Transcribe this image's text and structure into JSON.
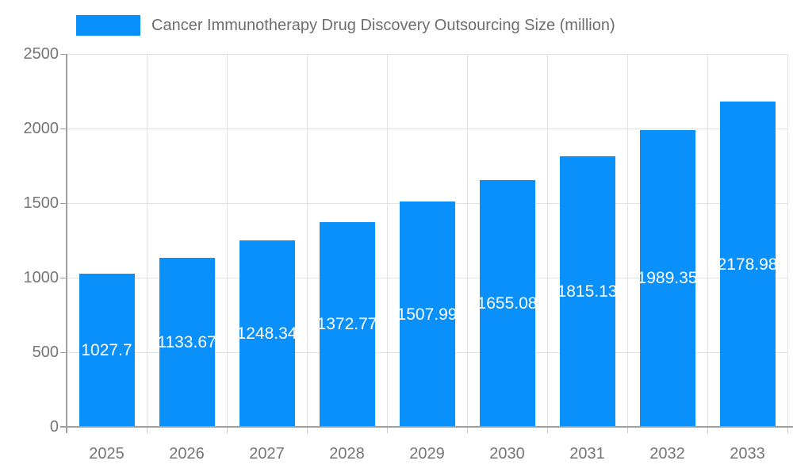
{
  "legend": {
    "label": "Cancer Immunotherapy Drug Discovery Outsourcing Size (million)"
  },
  "chart_data": {
    "type": "bar",
    "title": "Cancer Immunotherapy Drug Discovery Outsourcing Size (million)",
    "categories": [
      "2025",
      "2026",
      "2027",
      "2028",
      "2029",
      "2030",
      "2031",
      "2032",
      "2033"
    ],
    "series": [
      {
        "name": "Cancer Immunotherapy Drug Discovery Outsourcing Size (million)",
        "values": [
          1027.7,
          1133.67,
          1248.34,
          1372.77,
          1507.99,
          1655.08,
          1815.13,
          1989.35,
          2178.98
        ]
      }
    ],
    "value_labels": [
      "1027.7",
      "1133.67",
      "1248.34",
      "1372.77",
      "1507.99",
      "1655.08",
      "1815.13",
      "1989.35",
      "2178.98"
    ],
    "xlabel": "",
    "ylabel": "",
    "ylim": [
      0,
      2500
    ],
    "yticks": [
      0,
      500,
      1000,
      1500,
      2000,
      2500
    ],
    "grid": true,
    "legend_position": "top"
  },
  "colors": {
    "bar": "#0990fa",
    "bar_label": "#ffffff",
    "grid_line": "#e3e3e3",
    "axis_line": "#9e9e9e",
    "x_tick_mark": "#cccccc",
    "y_tick_mark": "#9e9e9e",
    "tick_label": "#757575",
    "legend_text": "#6e6e6e",
    "background": "#ffffff"
  }
}
